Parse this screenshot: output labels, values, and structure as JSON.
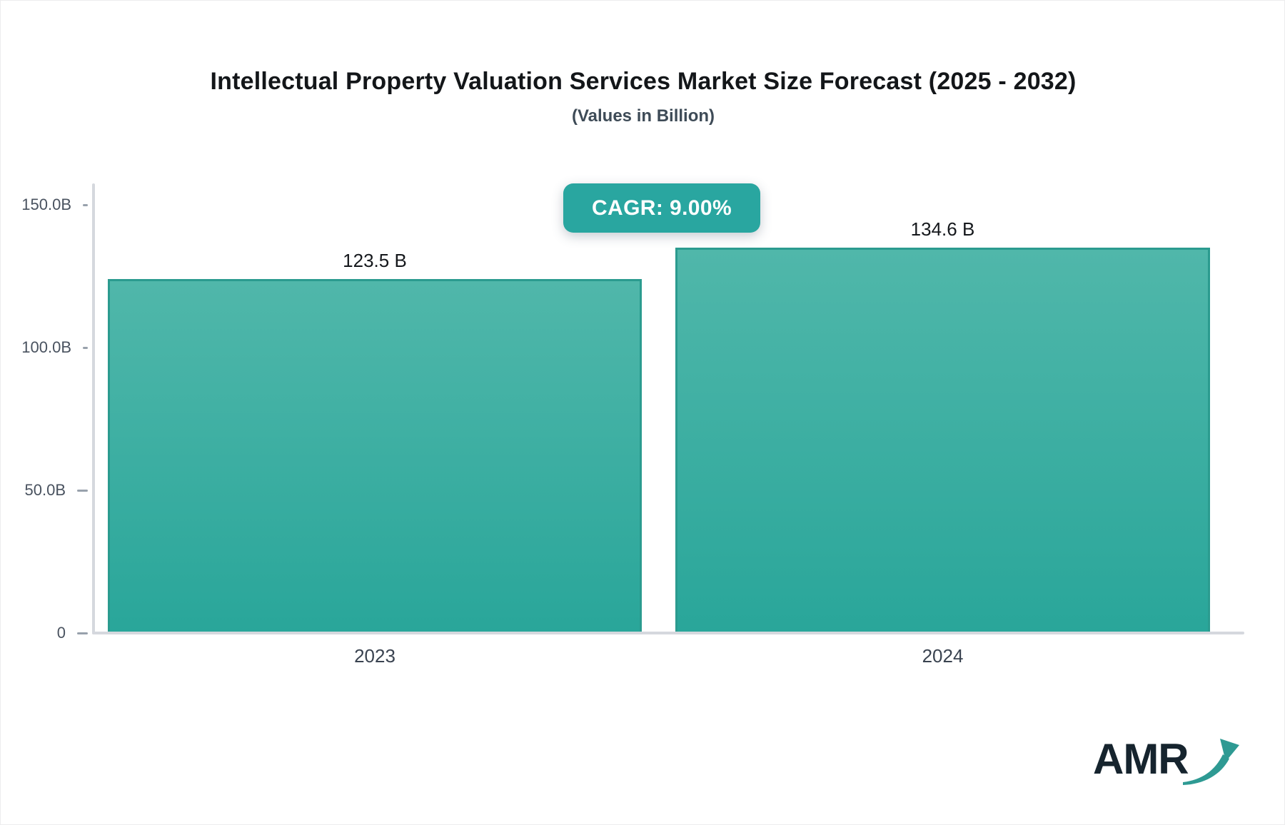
{
  "chart_data": {
    "type": "bar",
    "title": "Intellectual Property Valuation Services Market Size Forecast (2025 - 2032)",
    "subtitle": "(Values in Billion)",
    "badge_label": "CAGR: 9.00%",
    "cagr_percent": 9.0,
    "unit": "Billion",
    "categories": [
      "2023",
      "2024"
    ],
    "values": [
      123.5,
      134.6
    ],
    "value_labels": [
      "123.5 B",
      "134.6 B"
    ],
    "y_ticks": [
      {
        "label": "150.0B",
        "value": 150
      },
      {
        "label": "100.0B",
        "value": 100
      },
      {
        "label": "50.0B",
        "value": 50
      },
      {
        "label": "0",
        "value": 0
      }
    ],
    "ylim": [
      0,
      150
    ],
    "grid": false,
    "legend_position": "none",
    "bar_color_top": "#50B7AA",
    "bar_color_bottom": "#29A69A",
    "bar_border_color": "#2B9B8F",
    "badge_color": "#29A6A0",
    "axis_color": "#D5D8DE"
  },
  "branding": {
    "logo_text": "AMR",
    "logo_color": "#16242E",
    "arrow_color": "#2E9A93"
  }
}
